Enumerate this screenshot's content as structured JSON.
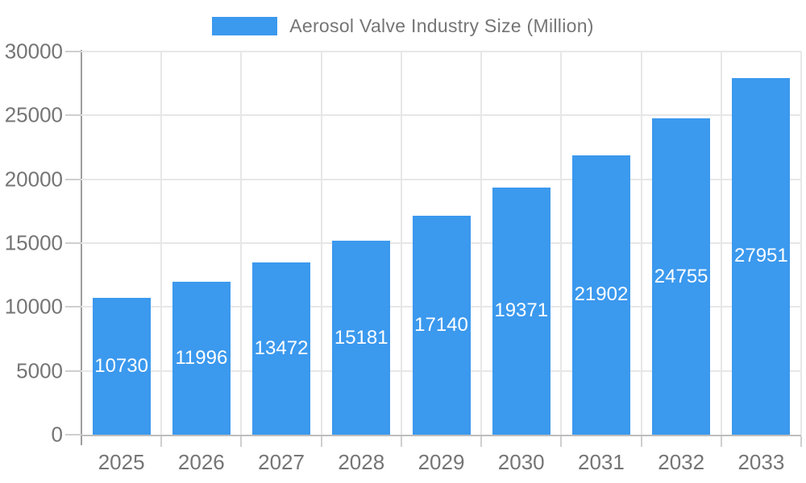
{
  "chart_data": {
    "type": "bar",
    "title": "",
    "legend": "Aerosol Valve Industry Size (Million)",
    "legend_position": "top-center",
    "categories": [
      "2025",
      "2026",
      "2027",
      "2028",
      "2029",
      "2030",
      "2031",
      "2032",
      "2033"
    ],
    "values": [
      10730,
      11996,
      13472,
      15181,
      17140,
      19371,
      21902,
      24755,
      27951
    ],
    "value_labels": [
      "10730",
      "11996",
      "13472",
      "15181",
      "17140",
      "19371",
      "21902",
      "24755",
      "27951"
    ],
    "value_labels_visible": true,
    "xlabel": "",
    "ylabel": "",
    "ylim": [
      0,
      30000
    ],
    "ytick_step": 5000,
    "ytick_labels": [
      "0",
      "5000",
      "10000",
      "15000",
      "20000",
      "25000",
      "30000"
    ],
    "grid": "on",
    "colors": {
      "bar": "#3b99ee",
      "value_label": "#ffffff",
      "axis_text": "#757575",
      "gridline": "#e7e7e7",
      "tick": "#cfcfcf",
      "y_axis_line": "#9e9e9e",
      "x_axis_line": "#bdbdbd",
      "background": "#ffffff"
    }
  }
}
